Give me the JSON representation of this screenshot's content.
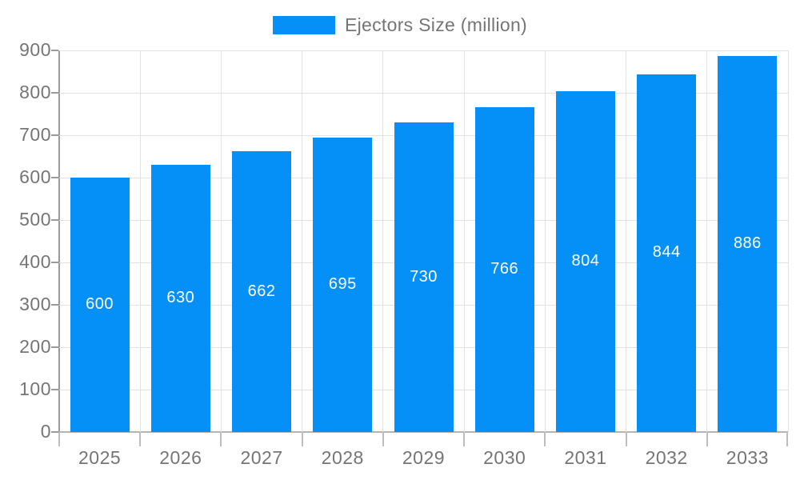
{
  "chart_data": {
    "type": "bar",
    "title": "",
    "legend": {
      "label": "Ejectors Size (million)",
      "position": "top"
    },
    "categories": [
      "2025",
      "2026",
      "2027",
      "2028",
      "2029",
      "2030",
      "2031",
      "2032",
      "2033"
    ],
    "series": [
      {
        "name": "Ejectors Size (million)",
        "values": [
          600,
          630,
          662,
          695,
          730,
          766,
          804,
          844,
          886
        ]
      }
    ],
    "value_labels_shown": true,
    "xlabel": "",
    "ylabel": "",
    "ylim": [
      0,
      900
    ],
    "yticks": [
      0,
      100,
      200,
      300,
      400,
      500,
      600,
      700,
      800,
      900
    ],
    "grid": true,
    "colors": {
      "bar": "#0590F8",
      "value_label": "#ffffff",
      "tick_label": "#757575",
      "legend_label": "#757575",
      "gridline": "#e2e2e2",
      "y_axis_line": "#9a9a9a",
      "x_axis_line": "#b4b4b4",
      "background": "#ffffff"
    }
  }
}
